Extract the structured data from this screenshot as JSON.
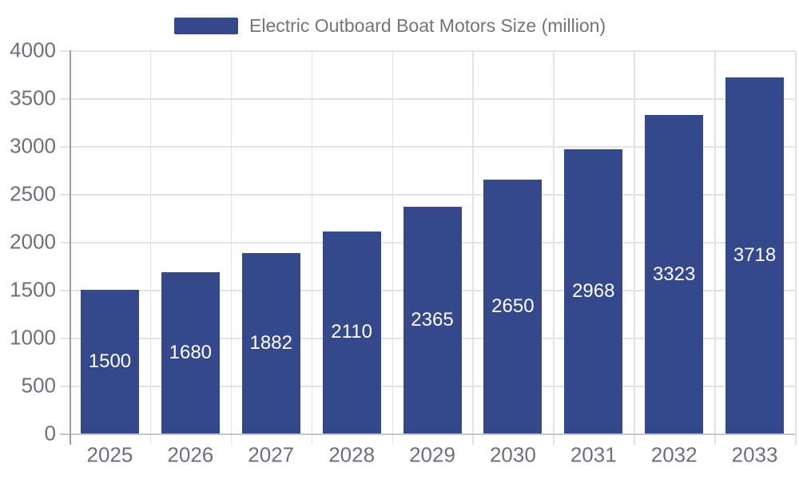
{
  "chart_data": {
    "type": "bar",
    "title": "Electric Outboard Boat Motors Size (million)",
    "categories": [
      "2025",
      "2026",
      "2027",
      "2028",
      "2029",
      "2030",
      "2031",
      "2032",
      "2033"
    ],
    "values": [
      1500,
      1680,
      1882,
      2110,
      2365,
      2650,
      2968,
      3323,
      3718
    ],
    "xlabel": "",
    "ylabel": "",
    "ylim": [
      0,
      4000
    ],
    "ytick_step": 500,
    "yticks": [
      0,
      500,
      1000,
      1500,
      2000,
      2500,
      3000,
      3500,
      4000
    ],
    "grid": true,
    "legend_position": "top",
    "value_labels": "inside-center"
  },
  "colors": {
    "bar": "#36488C",
    "grid": "#E3E3E3",
    "y_axis_line": "#9B9B9B",
    "x_axis_line": "#C6C6C6",
    "axis_text": "#6E7079",
    "legend_text": "#757575",
    "bar_label_text": "#FFFFFF",
    "background": "#FFFFFF"
  }
}
